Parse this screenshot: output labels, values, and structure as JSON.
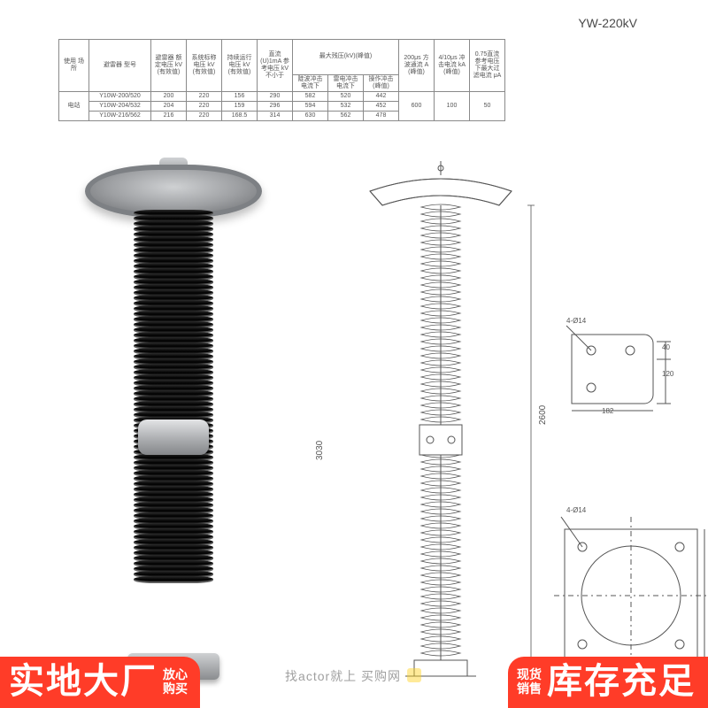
{
  "title": "YW-220kV",
  "table": {
    "group_headers": [
      "使用\n场所",
      "避雷器\n型号",
      "避雷器\n额定电压\nkV\n(有效值)",
      "系统标称\n电压\nkV\n(有效值)",
      "持续运行\n电压\nkV\n(有效值)",
      "直流\n(U)1mA\n参考电压\nkV\n不小于",
      "最大残压(kV)(峰值)",
      "200μs\n方波通流\nA\n(峰值)",
      "4/10μs\n冲击电流\nkA\n(峰值)",
      "0.75直流\n参考电压\n下最大过\n滤电流\nμA"
    ],
    "sub_headers": [
      "陡波冲击\n电流下",
      "雷电冲击\n电流下",
      "操作冲击\n(峰值)"
    ],
    "row_label": "电站",
    "rows": [
      {
        "model": "Y10W-200/520",
        "v": [
          "200",
          "220",
          "156",
          "290",
          "582",
          "520",
          "442"
        ]
      },
      {
        "model": "Y10W-204/532",
        "v": [
          "204",
          "220",
          "159",
          "296",
          "594",
          "532",
          "452"
        ]
      },
      {
        "model": "Y10W-216/562",
        "v": [
          "216",
          "220",
          "168.5",
          "314",
          "630",
          "562",
          "478"
        ]
      }
    ],
    "tail": [
      "600",
      "100",
      "50"
    ]
  },
  "dims": {
    "overall": "3030",
    "housing": "2600",
    "flange_note": "4-Ø14",
    "flange_h1": "40",
    "flange_h2": "120",
    "flange_w": "182",
    "base_note": "4-Ø14"
  },
  "badges": {
    "left_big": "实地大厂",
    "left_small_1": "放心",
    "left_small_2": "购买",
    "right_big": "库存充足",
    "right_small_1": "现货",
    "right_small_2": "销售"
  },
  "watermark": "找actor就上 买购网"
}
